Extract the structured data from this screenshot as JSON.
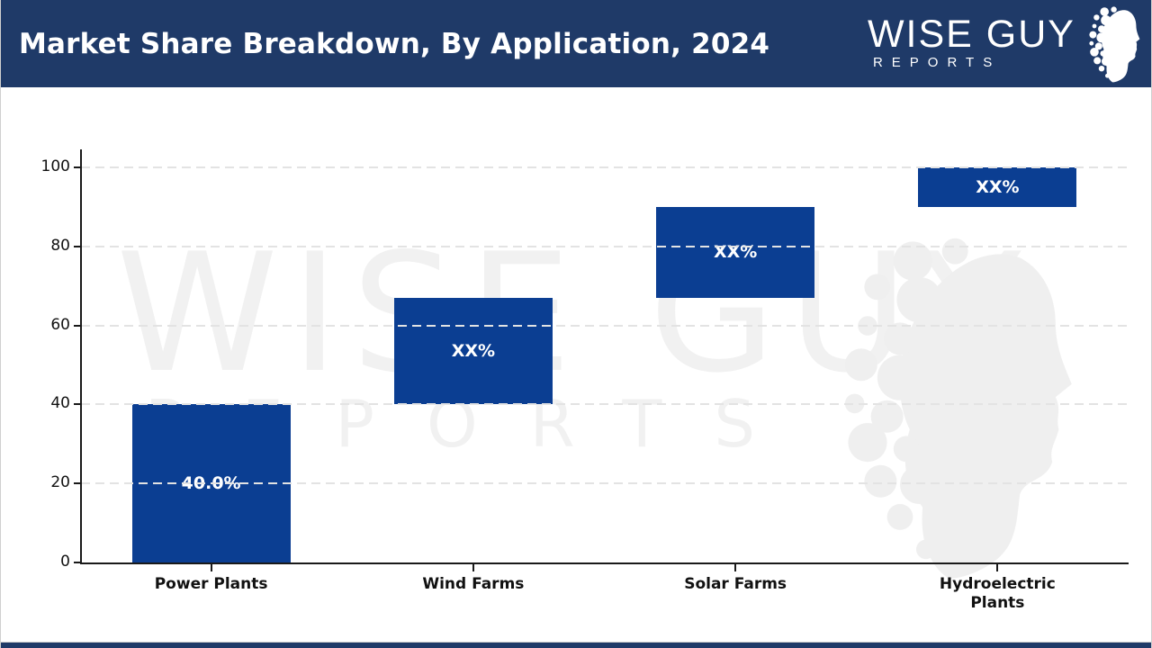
{
  "header": {
    "logo_line1": "WISE GUY",
    "logo_line2": "REPORTS"
  },
  "watermark": {
    "line1": "WISE GUY",
    "line2": "REPORTS"
  },
  "colors": {
    "header_bg": "#1f3a68",
    "footer_bg": "#1f3a68",
    "bar": "#0b3e92",
    "bar_label": "#ffffff",
    "gridline": "#e3e3e3",
    "axis": "#1a1a1a",
    "watermark": "#f1f1f1"
  },
  "chart_data": {
    "type": "bar",
    "subtype": "waterfall",
    "title": "Market Share Breakdown, By Application, 2024",
    "categories": [
      "Power Plants",
      "Wind Farms",
      "Solar Farms",
      "Hydroelectric Plants"
    ],
    "segments": [
      {
        "category": "Power Plants",
        "start": 0,
        "end": 40,
        "label": "40.0%"
      },
      {
        "category": "Wind Farms",
        "start": 40,
        "end": 67,
        "label": "XX%"
      },
      {
        "category": "Solar Farms",
        "start": 67,
        "end": 90,
        "label": "XX%"
      },
      {
        "category": "Hydroelectric Plants",
        "start": 90,
        "end": 100,
        "label": "XX%"
      }
    ],
    "yticks": [
      0,
      20,
      40,
      60,
      80,
      100
    ],
    "ylim": [
      0,
      104.6
    ],
    "xlabel": "",
    "ylabel": "",
    "grid": "horizontal-dashed",
    "legend": "none",
    "bar_color": "#0b3e92"
  }
}
